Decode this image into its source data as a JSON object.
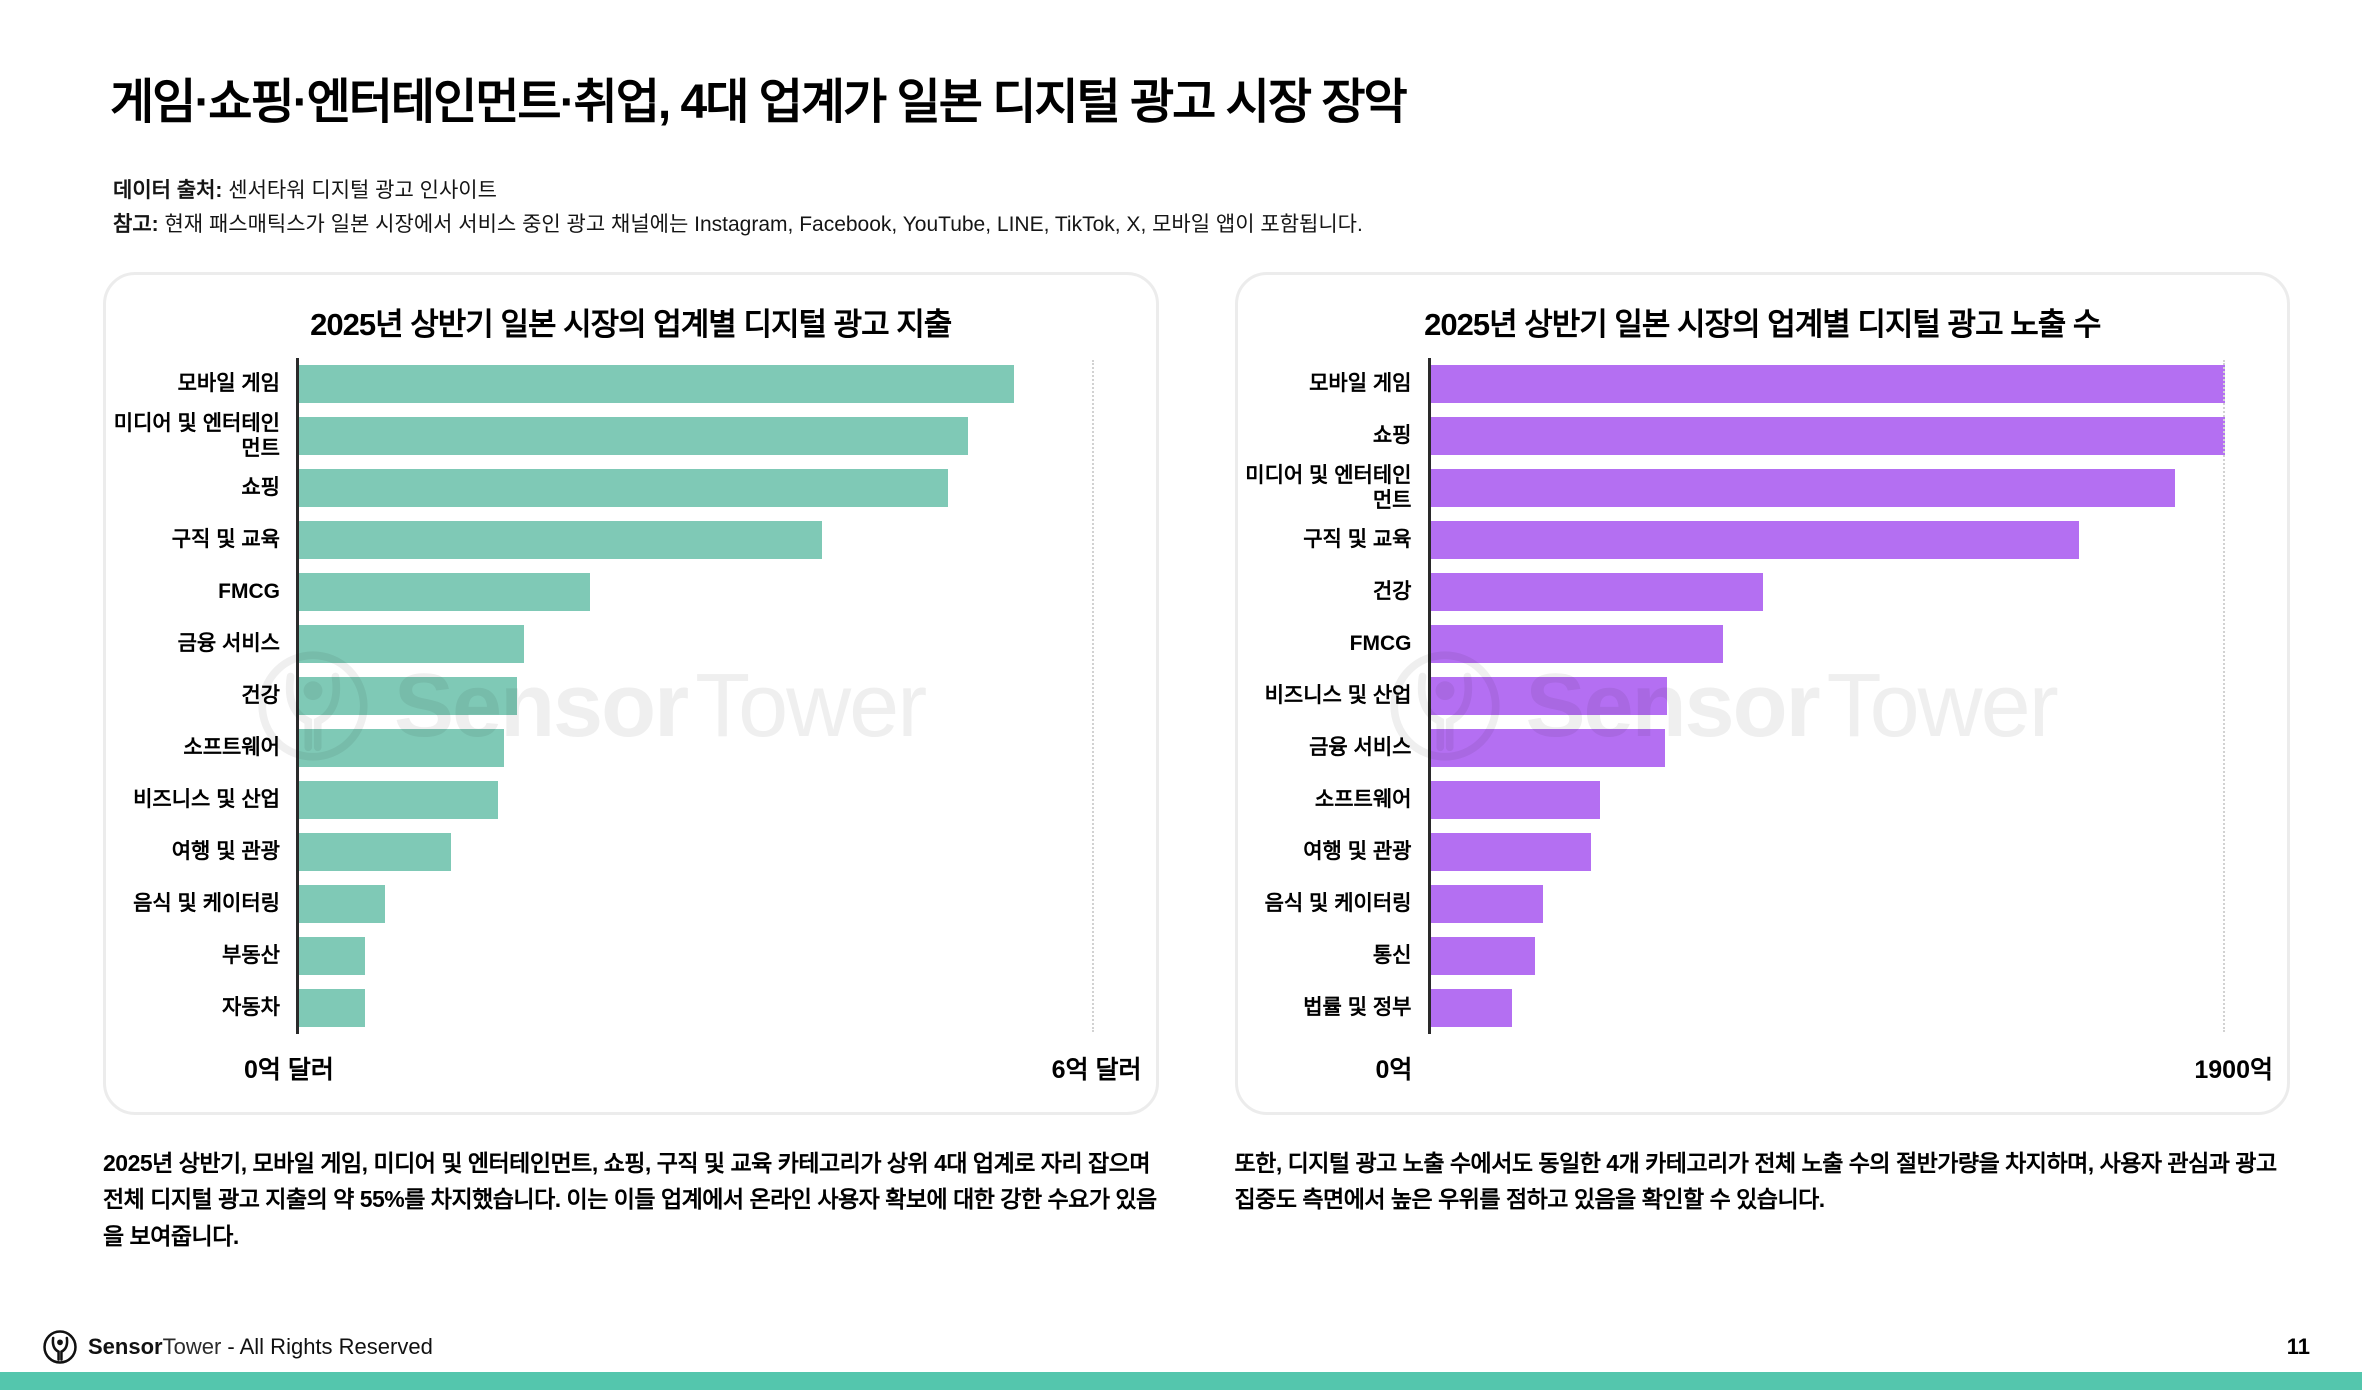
{
  "page": {
    "title": "게임·쇼핑·엔터테인먼트·취업, 4대 업계가 일본 디지털 광고 시장 장악",
    "page_number": "11"
  },
  "notes": {
    "line1": {
      "label": "데이터 출처:",
      "text": " 센서타워 디지털 광고 인사이트"
    },
    "line2": {
      "label": "참고:",
      "text": " 현재 패스매틱스가 일본 시장에서 서비스 중인 광고 채널에는 Instagram, Facebook, YouTube, LINE, TikTok, X, 모바일 앱이 포함됩니다."
    }
  },
  "chart_data": [
    {
      "type": "bar",
      "orientation": "horizontal",
      "title": "2025년 상반기 일본 시장의 업계별 디지털 광고 지출",
      "categories": [
        "모바일 게임",
        "미디어 및 엔터테인먼트",
        "쇼핑",
        "구직 및 교육",
        "FMCG",
        "금융 서비스",
        "건강",
        "소프트웨어",
        "비즈니스 및 산업",
        "여행 및 관광",
        "음식 및 케이터링",
        "부동산",
        "자동차"
      ],
      "values": [
        5.4,
        5.05,
        4.9,
        3.95,
        2.2,
        1.7,
        1.65,
        1.55,
        1.5,
        1.15,
        0.65,
        0.5,
        0.5
      ],
      "unit": "억 달러",
      "xlim": [
        0,
        6
      ],
      "axis_min_label": "0억 달러",
      "axis_max_label": "6억 달러",
      "bar_color": "#7FC9B6",
      "grid": "single dotted line at axis max, right side"
    },
    {
      "type": "bar",
      "orientation": "horizontal",
      "title": "2025년 상반기 일본 시장의 업계별 디지털 광고 노출 수",
      "categories": [
        "모바일 게임",
        "쇼핑",
        "미디어 및 엔터테인먼트",
        "구직 및 교육",
        "건강",
        "FMCG",
        "비즈니스 및 산업",
        "금융 서비스",
        "소프트웨어",
        "여행 및 관광",
        "음식 및 케이터링",
        "통신",
        "법률 및 정부"
      ],
      "values": [
        1900,
        1900,
        1780,
        1550,
        795,
        700,
        565,
        560,
        405,
        385,
        270,
        250,
        195
      ],
      "unit": "억",
      "xlim": [
        0,
        1900
      ],
      "axis_min_label": "0억",
      "axis_max_label": "1900억",
      "bar_color": "#B46FF2",
      "grid": "single dotted line at axis max, right side"
    }
  ],
  "captions": {
    "left": "2025년 상반기, 모바일 게임, 미디어 및 엔터테인먼트, 쇼핑, 구직 및 교육 카테고리가 상위 4대 업계로 자리 잡으며 전체 디지털 광고 지출의 약 55%를 차지했습니다. 이는 이들 업계에서 온라인 사용자 확보에 대한 강한 수요가 있음을 보여줍니다.",
    "right": "또한, 디지털 광고 노출 수에서도 동일한 4개 카테고리가 전체 노출 수의 절반가량을 차지하며, 사용자 관심과 광고 집중도 측면에서 높은 우위를 점하고 있음을 확인할 수 있습니다."
  },
  "watermark": {
    "brand_bold": "Sensor",
    "brand_light": "Tower"
  },
  "footer": {
    "brand_bold": "Sensor",
    "brand_light": "Tower",
    "rights": " - All Rights Reserved"
  },
  "colors": {
    "bar_teal": "#7FC9B6",
    "bar_purple": "#B46FF2",
    "footer_strip": "#54C6AD",
    "watermark_gray": "#EFEFEF",
    "card_border": "#ECECEC",
    "axis_line": "#2A2A2A"
  }
}
